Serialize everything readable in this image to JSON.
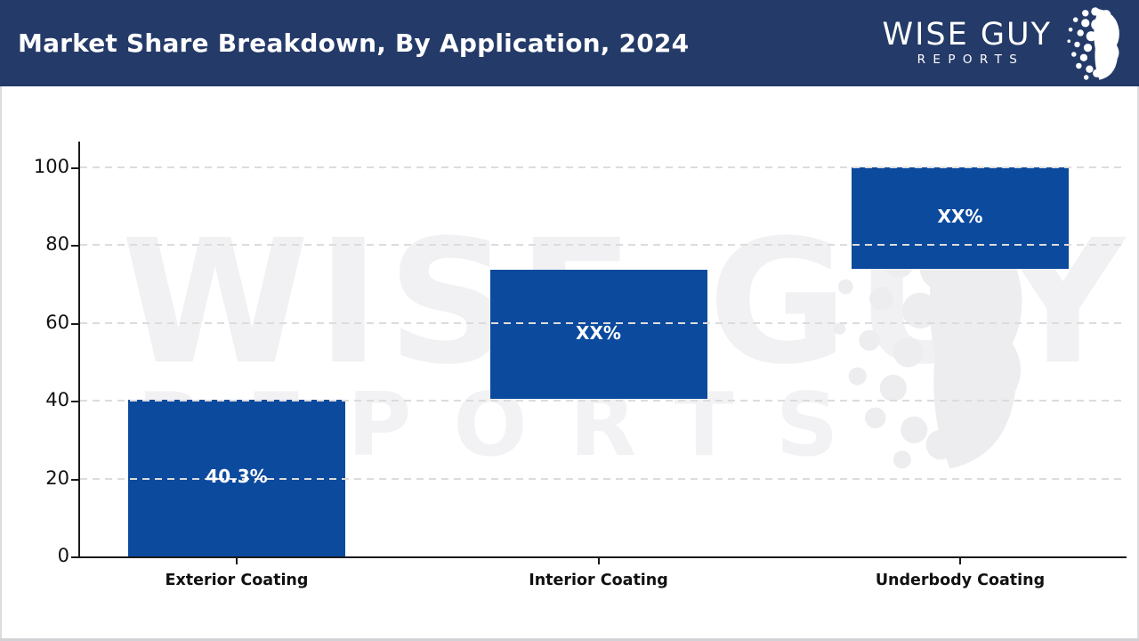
{
  "header": {
    "title": "Market Share Breakdown, By Application, 2024",
    "bg_color": "#243a68",
    "logo": {
      "line1": "WISE GUY",
      "line2": "REPORTS"
    }
  },
  "watermark": {
    "line1": "WISE GUY",
    "line2": "REPORTS"
  },
  "chart_data": {
    "type": "bar",
    "subtype": "floating-waterfall",
    "title": "Market Share Breakdown, By Application, 2024",
    "categories": [
      "Exterior Coating",
      "Interior Coating",
      "Underbody Coating"
    ],
    "segments": [
      {
        "category": "Exterior Coating",
        "start": 0,
        "end": 40.3,
        "label": "40.3%"
      },
      {
        "category": "Interior Coating",
        "start": 40.4,
        "end": 73.6,
        "label": "XX%"
      },
      {
        "category": "Underbody Coating",
        "start": 73.8,
        "end": 100,
        "label": "XX%"
      }
    ],
    "xlabel": "",
    "ylabel": "",
    "yticks": [
      0,
      20,
      40,
      60,
      80,
      100
    ],
    "ylim": [
      0,
      105
    ],
    "grid": "horizontal-dashed",
    "legend": "none",
    "bar_color": "#0c4a9e",
    "bar_label_color": "#ffffff",
    "axis_color": "#1a1a1a",
    "grid_color": "#dcdcdc"
  },
  "colors": {
    "header_bg": "#243a68",
    "bar_blue": "#0c4a9e",
    "watermark_gray": "#f1f1f4",
    "bottom_line": "#d3d3d7"
  }
}
